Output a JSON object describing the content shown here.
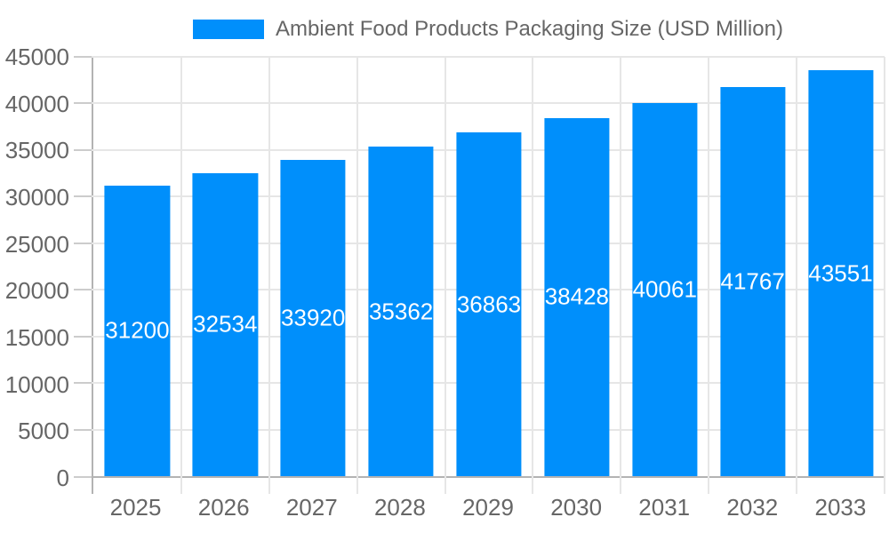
{
  "chart_data": {
    "type": "bar",
    "title": "Ambient Food Products Packaging Size (USD Million)",
    "legend": {
      "label": "Ambient Food Products Packaging Size (USD Million)",
      "position": "top"
    },
    "categories": [
      "2025",
      "2026",
      "2027",
      "2028",
      "2029",
      "2030",
      "2031",
      "2032",
      "2033"
    ],
    "series": [
      {
        "name": "Ambient Food Products Packaging Size (USD Million)",
        "values": [
          31200,
          32534,
          33920,
          35362,
          36863,
          38428,
          40061,
          41767,
          43551
        ]
      }
    ],
    "value_labels": [
      "31200",
      "32534",
      "33920",
      "35362",
      "36863",
      "38428",
      "40061",
      "41767",
      "43551"
    ],
    "xlabel": "",
    "ylabel": "",
    "ylim": [
      0,
      45000
    ],
    "ytick_step": 5000,
    "yticks": [
      0,
      5000,
      10000,
      15000,
      20000,
      25000,
      30000,
      35000,
      40000,
      45000
    ],
    "grid": true,
    "colors": {
      "bar": "#008FFB",
      "value_label_text": "#ffffff",
      "axis_text": "#666666",
      "gridline": "#e6e6e6",
      "axis_line": "#b3b3b3"
    }
  }
}
